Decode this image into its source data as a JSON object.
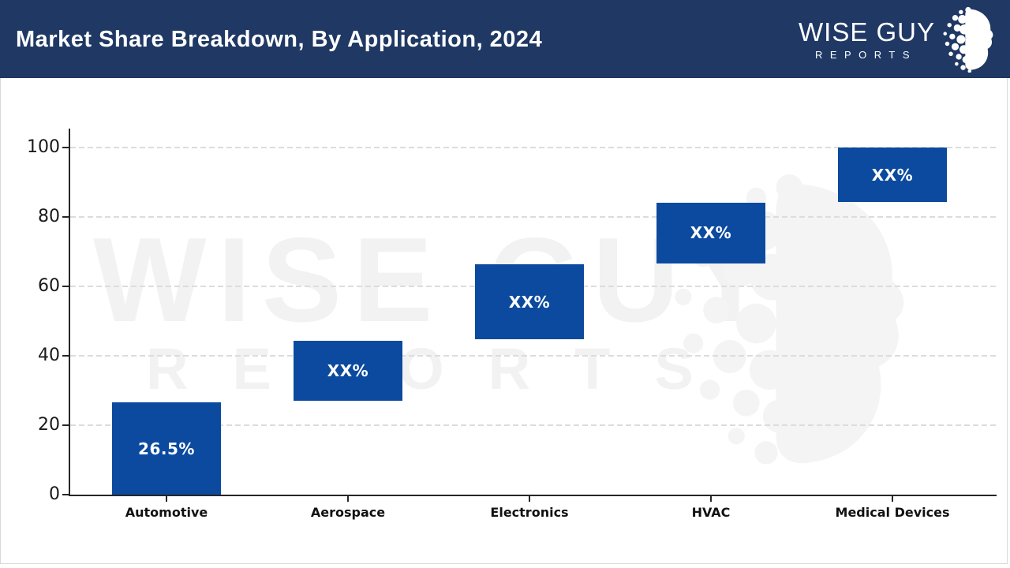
{
  "header": {
    "title": "Market Share Breakdown, By Application, 2024",
    "logo": {
      "line1": "WISE GUY",
      "line2": "REPORTS"
    }
  },
  "watermark": {
    "line1": "WISE GUY",
    "line2": "REPORTS"
  },
  "colors": {
    "header_bg": "#1f3864",
    "bar": "#0b4a9f",
    "gridline": "#dcdcdc",
    "axis": "#262626",
    "watermark": "#f2f2f2"
  },
  "chart_data": {
    "type": "bar",
    "variant": "waterfall-floating-bars",
    "title": "Market Share Breakdown, By Application, 2024",
    "xlabel": "",
    "ylabel": "",
    "categories": [
      "Automotive",
      "Aerospace",
      "Electronics",
      "HVAC",
      "Medical Devices"
    ],
    "bars": [
      {
        "category": "Automotive",
        "start": 0,
        "end": 26.5,
        "label": "26.5%"
      },
      {
        "category": "Aerospace",
        "start": 27,
        "end": 44.3,
        "label": "XX%"
      },
      {
        "category": "Electronics",
        "start": 44.8,
        "end": 66.3,
        "label": "XX%"
      },
      {
        "category": "HVAC",
        "start": 66.6,
        "end": 84.1,
        "label": "XX%"
      },
      {
        "category": "Medical Devices",
        "start": 84.3,
        "end": 100,
        "label": "XX%"
      }
    ],
    "ylim": [
      0,
      100
    ],
    "yticks": [
      0,
      20,
      40,
      60,
      80,
      100
    ],
    "grid": "horizontal-dashed",
    "legend": "none",
    "bar_color": "#0b4a9f"
  }
}
